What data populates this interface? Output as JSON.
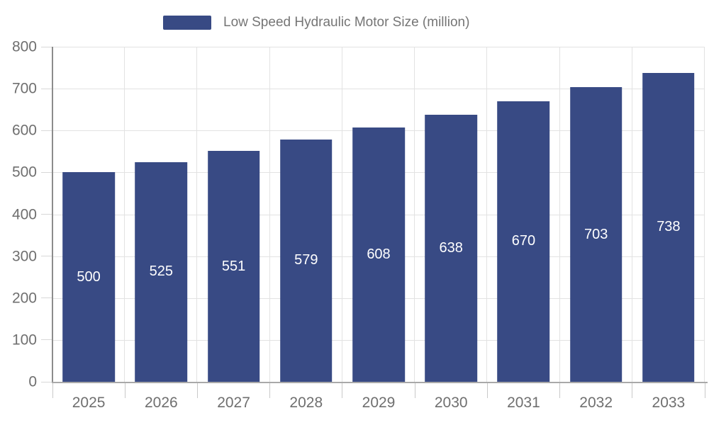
{
  "chart_data": {
    "type": "bar",
    "title": "",
    "series_name": "Low Speed Hydraulic Motor Size (million)",
    "categories": [
      "2025",
      "2026",
      "2027",
      "2028",
      "2029",
      "2030",
      "2031",
      "2032",
      "2033"
    ],
    "values": [
      500,
      525,
      551,
      579,
      608,
      638,
      670,
      703,
      738
    ],
    "xlabel": "",
    "ylabel": "",
    "ylim": [
      0,
      800
    ],
    "ytick_step": 100,
    "yticks": [
      0,
      100,
      200,
      300,
      400,
      500,
      600,
      700,
      800
    ],
    "grid": true,
    "legend_position": "top",
    "value_label_position": "inside-center"
  },
  "colors": {
    "bar": "#384A84",
    "value_label": "#FFFFFF",
    "grid_line": "#E2E2E2",
    "axis_line_x": "#A9A9A9",
    "axis_line_y": "#8C8C8C",
    "tick_mark_x": "#C9C9C9",
    "tick_mark_y": "#D8D8D8",
    "axis_text": "#6F6F6F",
    "legend_text": "#757575",
    "background": "#FFFFFF"
  }
}
